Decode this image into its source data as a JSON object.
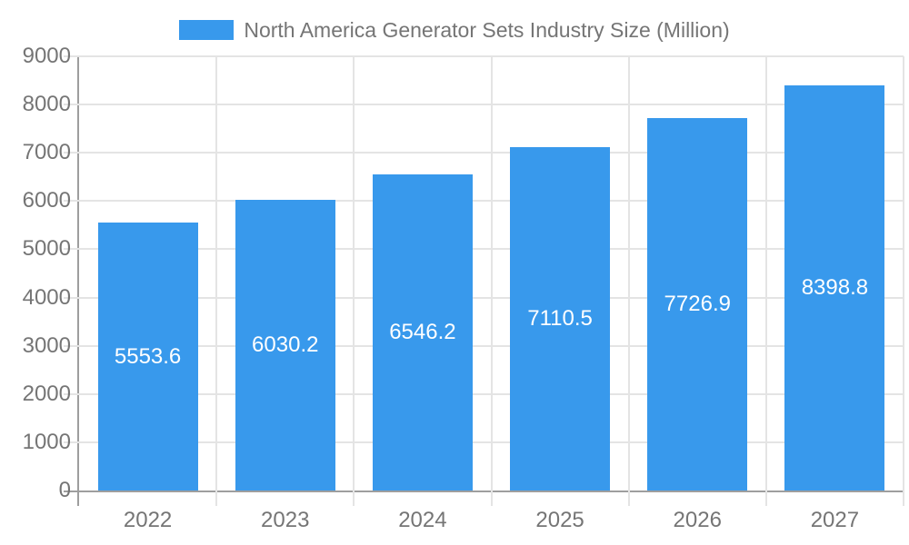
{
  "chart_data": {
    "type": "bar",
    "title": "",
    "xlabel": "",
    "ylabel": "",
    "categories": [
      "2022",
      "2023",
      "2024",
      "2025",
      "2026",
      "2027"
    ],
    "series": [
      {
        "name": "North America Generator Sets Industry Size (Million)",
        "values": [
          5553.6,
          6030.2,
          6546.2,
          7110.5,
          7726.9,
          8398.8
        ]
      }
    ],
    "bar_value_labels": [
      "5553.6",
      "6030.2",
      "6546.2",
      "7110.5",
      "7726.9",
      "8398.8"
    ],
    "ylim": [
      0,
      9000
    ],
    "yticks": [
      0,
      1000,
      2000,
      3000,
      4000,
      5000,
      6000,
      7000,
      8000,
      9000
    ],
    "grid": true,
    "legend_position": "top",
    "colors": {
      "bar": "#3899ec",
      "grid": "#e4e4e4",
      "axis": "#9e9e9e",
      "axis_label_text": "#757575",
      "bar_label_text": "#ffffff"
    }
  }
}
